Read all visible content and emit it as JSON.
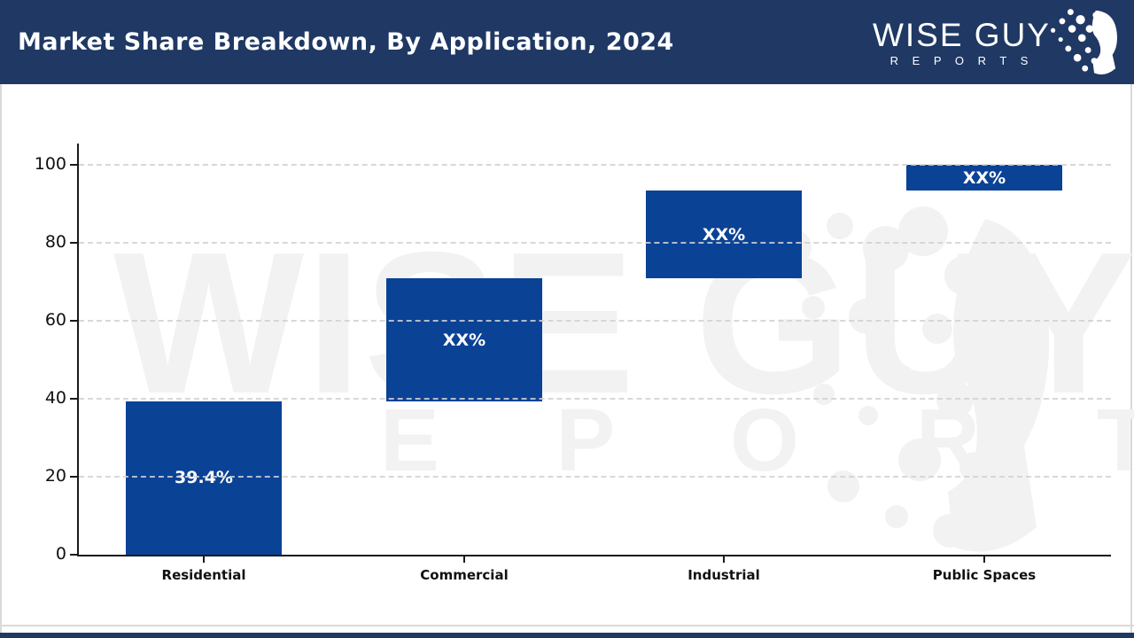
{
  "header": {
    "title": "Market Share Breakdown, By Application, 2024",
    "logo": {
      "line1": "WISE GUY",
      "line2": "R E P O R T S"
    }
  },
  "watermark": {
    "line1": "WISE GUY",
    "line2": "R E P O R T S"
  },
  "colors": {
    "header_bg": "#1f3864",
    "footer_bg": "#1f3864",
    "bar": "#0a4296",
    "grid": "#d2d2d2",
    "axis": "#1a1a1a",
    "tick_label": "#111111",
    "bar_label": "#ffffff",
    "watermark": "#f2f2f2"
  },
  "chart_data": {
    "type": "bar",
    "subtype": "waterfall",
    "title": "Market Share Breakdown, By Application, 2024",
    "categories": [
      "Residential",
      "Commercial",
      "Industrial",
      "Public Spaces"
    ],
    "series": [
      {
        "name": "Market Share (%)",
        "segments": [
          {
            "category": "Residential",
            "start": 0,
            "end": 39.4,
            "label": "39.4%"
          },
          {
            "category": "Commercial",
            "start": 39.4,
            "end": 70.8,
            "label": "XX%"
          },
          {
            "category": "Industrial",
            "start": 70.8,
            "end": 93.3,
            "label": "XX%"
          },
          {
            "category": "Public Spaces",
            "start": 93.3,
            "end": 100.0,
            "label": "XX%"
          }
        ]
      }
    ],
    "xlabel": "",
    "ylabel": "",
    "ylim": [
      0,
      105
    ],
    "yticks": [
      0,
      20,
      40,
      60,
      80,
      100
    ],
    "grid": "horizontal-dashed",
    "legend": "none",
    "bar_value_labels": [
      "39.4%",
      "XX%",
      "XX%",
      "XX%"
    ]
  }
}
